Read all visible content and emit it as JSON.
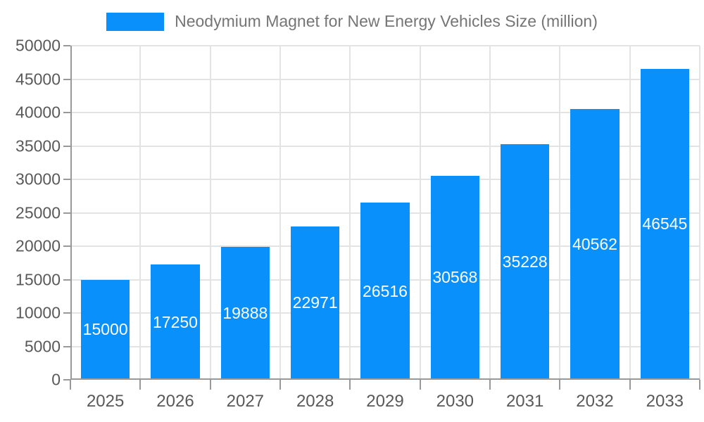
{
  "page": {
    "background": "#ffffff"
  },
  "legend": {
    "label": "Neodymium Magnet for New Energy Vehicles Size (million)",
    "swatch_color": "#0990fa",
    "position": "top-center"
  },
  "chart_data": {
    "type": "bar",
    "title": "Neodymium Magnet for New Energy Vehicles Size (million)",
    "categories": [
      "2025",
      "2026",
      "2027",
      "2028",
      "2029",
      "2030",
      "2031",
      "2032",
      "2033"
    ],
    "values": [
      15000,
      17250,
      19888,
      22971,
      26516,
      30568,
      35228,
      40562,
      46545
    ],
    "xlabel": "",
    "ylabel": "",
    "ylim": [
      0,
      50000
    ],
    "ytick_step": 5000,
    "grid": true,
    "legend_position": "top-center",
    "bar_width_ratio": 0.7,
    "colors": {
      "bar": "#0990fa",
      "bar_label": "#ffffff",
      "grid": "#e3e3e3",
      "axis": "#999999",
      "tick_label": "#595959",
      "title": "#757575",
      "background": "#ffffff"
    }
  }
}
